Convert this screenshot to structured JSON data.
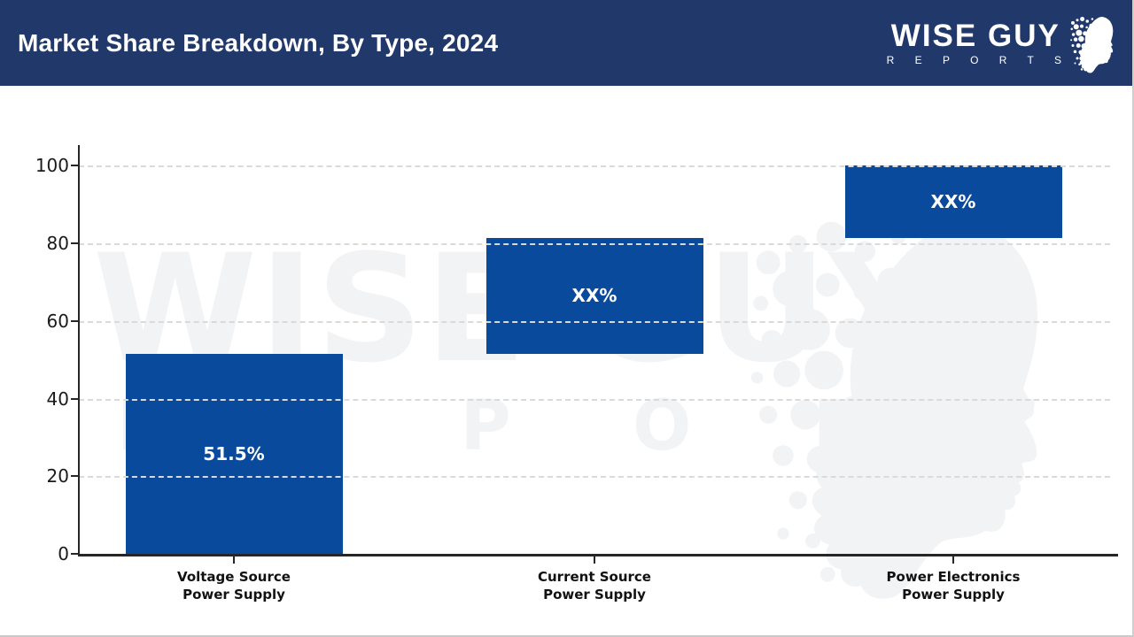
{
  "header": {
    "title": "Market Share Breakdown, By Type, 2024",
    "logo": {
      "line1": "WISE GUY",
      "line2": "R E P O R T S"
    }
  },
  "watermark": {
    "line1": "WISE GUY",
    "line2": "R E P O R T S"
  },
  "colors": {
    "header_bg": "#21386a",
    "bar": "#0a4a9d",
    "bar_label": "#ffffff",
    "gridline": "#dadada",
    "axis": "#262626",
    "watermark": "#f2f3f5"
  },
  "chart_data": {
    "type": "bar",
    "subtype": "floating-waterfall",
    "title": "Market Share Breakdown, By Type, 2024",
    "categories": [
      [
        "Voltage Source",
        "Power Supply"
      ],
      [
        "Current Source",
        "Power Supply"
      ],
      [
        "Power Electronics",
        "Power Supply"
      ]
    ],
    "segments": [
      {
        "category": "Voltage Source Power Supply",
        "start": 0,
        "end": 51.5,
        "label": "51.5%"
      },
      {
        "category": "Current Source Power Supply",
        "start": 51.5,
        "end": 81.5,
        "label": "XX%"
      },
      {
        "category": "Power Electronics Power Supply",
        "start": 81.5,
        "end": 100,
        "label": "XX%"
      }
    ],
    "ylim": [
      0,
      100
    ],
    "yticks": [
      0,
      20,
      40,
      60,
      80,
      100
    ],
    "grid": "horizontal-dashed",
    "legend": "none"
  }
}
